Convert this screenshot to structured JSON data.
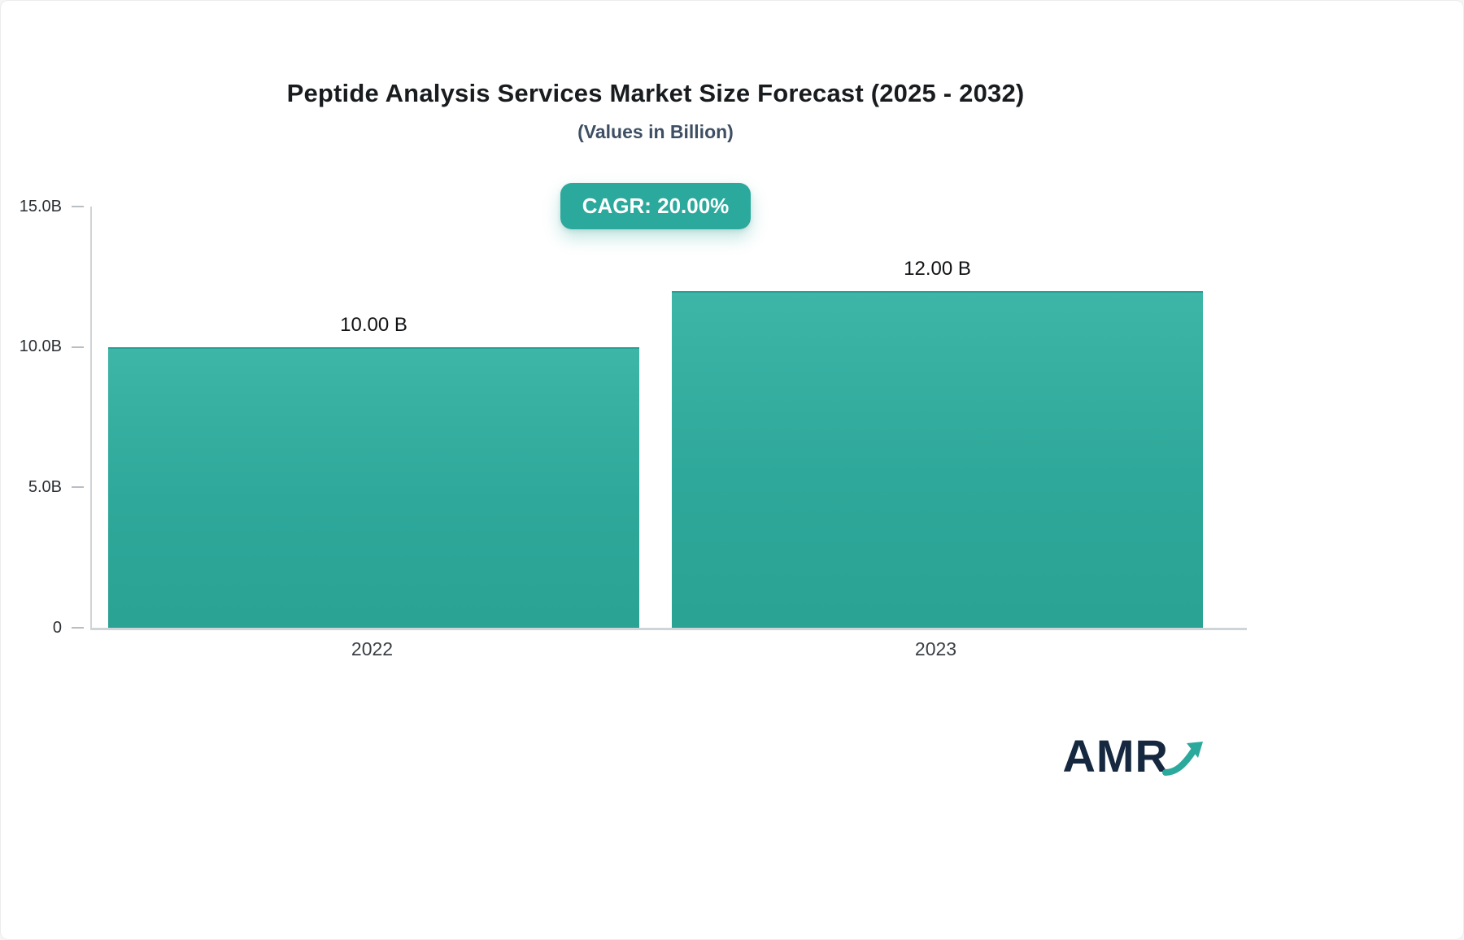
{
  "title": "Peptide Analysis Services Market Size Forecast (2025 - 2032)",
  "subtitle": "(Values in Billion)",
  "cagr_badge": "CAGR: 20.00%",
  "logo_text": "AMR",
  "colors": {
    "bar_teal": "#2BA99C",
    "badge_teal": "#2BA99C",
    "logo_navy": "#16283f",
    "axis_gray": "#cfd4d8"
  },
  "chart_data": {
    "type": "bar",
    "title": "Peptide Analysis Services Market Size Forecast (2025 - 2032)",
    "subtitle": "(Values in Billion)",
    "categories": [
      "2022",
      "2023"
    ],
    "values": [
      10.0,
      12.0
    ],
    "value_labels": [
      "10.00 B",
      "12.00 B"
    ],
    "xlabel": "",
    "ylabel": "",
    "ylim": [
      0,
      15
    ],
    "yticks": [
      {
        "value": 15,
        "label": "15.0B"
      },
      {
        "value": 10,
        "label": "10.0B"
      },
      {
        "value": 5,
        "label": "5.0B"
      },
      {
        "value": 0,
        "label": "0"
      }
    ],
    "grid": false,
    "legend": false,
    "annotations": [
      "CAGR: 20.00%"
    ]
  }
}
